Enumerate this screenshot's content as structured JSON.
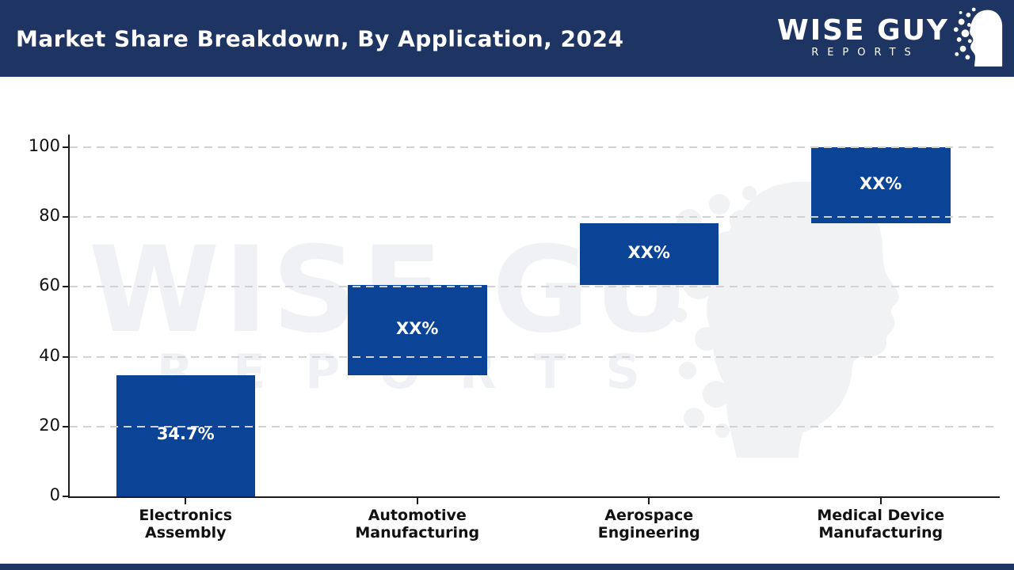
{
  "header": {
    "title": "Market Share Breakdown, By Application, 2024",
    "logo": {
      "brand_line1": "WISE GUY",
      "brand_line2": "REPORTS"
    }
  },
  "watermark": {
    "line1": "WISE GUY",
    "line2": "REPORTS"
  },
  "chart_data": {
    "type": "waterfall",
    "title": "Market Share Breakdown, By Application, 2024",
    "categories": [
      "Electronics Assembly",
      "Automotive Manufacturing",
      "Aerospace Engineering",
      "Medical Device Manufacturing"
    ],
    "segments": [
      {
        "start": 0,
        "end": 34.7,
        "label": "34.7%"
      },
      {
        "start": 34.7,
        "end": 60.5,
        "label": "XX%"
      },
      {
        "start": 60.5,
        "end": 78.2,
        "label": "XX%"
      },
      {
        "start": 78.2,
        "end": 100,
        "label": "XX%"
      }
    ],
    "xlabel": "",
    "ylabel": "",
    "yticks": [
      0,
      20,
      40,
      60,
      80,
      100
    ],
    "ylim": [
      0,
      103.6
    ],
    "grid": true,
    "grid_style": "dashed",
    "legend": false,
    "bar_color": "#0b4396",
    "bar_label_color": "#ffffff",
    "axis_color": "#1a1a1a",
    "grid_color": "#d2d2d2"
  },
  "colors": {
    "header_bg": "#1e3463",
    "footer_bg": "#1e3463",
    "watermark": "#f0f1f4"
  }
}
